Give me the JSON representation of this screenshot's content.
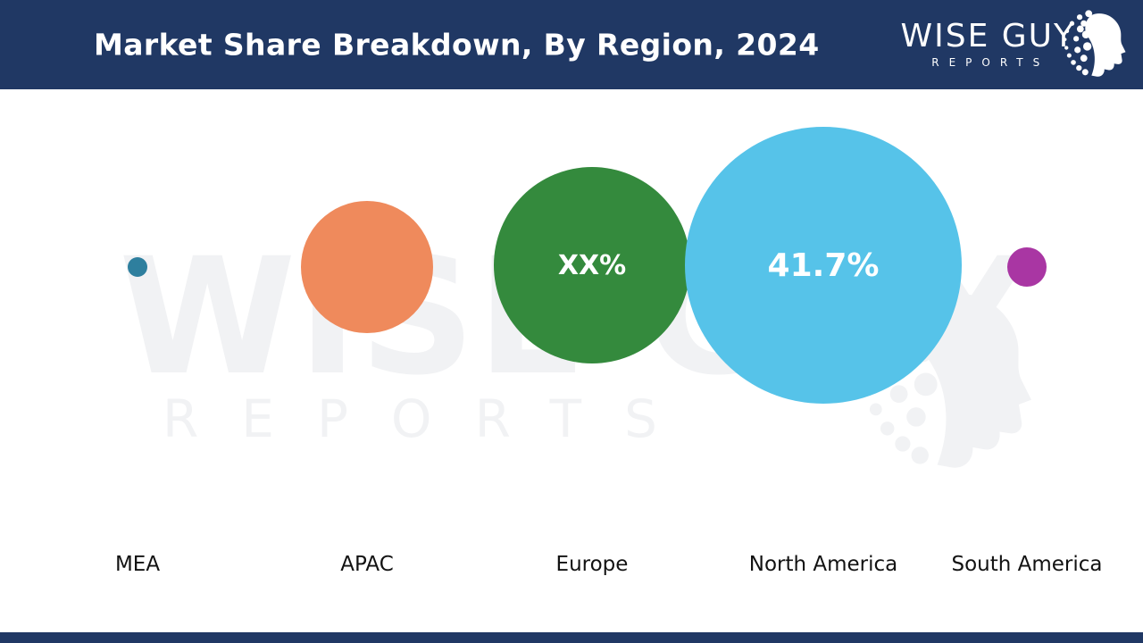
{
  "header": {
    "title": "Market Share Breakdown, By Region, 2024"
  },
  "logo": {
    "line1": "WISE GUY",
    "line2": "REPORTS",
    "icon": "dotted-head-profile"
  },
  "watermark": {
    "line1": "WISE GUY",
    "line2": "REPORTS",
    "icon": "dotted-head-profile"
  },
  "chart_data": {
    "type": "bubble",
    "title": "Market Share Breakdown, By Region, 2024",
    "categories": [
      "MEA",
      "APAC",
      "Europe",
      "North America",
      "South America"
    ],
    "values_pct": [
      null,
      null,
      null,
      41.7,
      null
    ],
    "value_labels": [
      "",
      "",
      "XX%",
      "41.7%",
      ""
    ],
    "colors": [
      "#2E7F9E",
      "#EF8A5C",
      "#348A3D",
      "#56C3E9",
      "#A936A3"
    ],
    "bubble_radius_px": [
      11,
      74,
      110,
      155,
      22
    ],
    "bubble_center_x": [
      154,
      411,
      663,
      922,
      1150
    ],
    "bubble_center_y": [
      299,
      299,
      297,
      297,
      299
    ],
    "value_font_px": [
      0,
      0,
      30,
      36,
      0
    ],
    "grid": false,
    "legend_position": "bottom"
  },
  "colors": {
    "header_bg": "#203864",
    "footer_bg": "#203864",
    "background": "#FFFFFF",
    "watermark": "#F1F2F4",
    "category_label_text": "#121212",
    "bubble_value_text": "#FFFFFF"
  }
}
